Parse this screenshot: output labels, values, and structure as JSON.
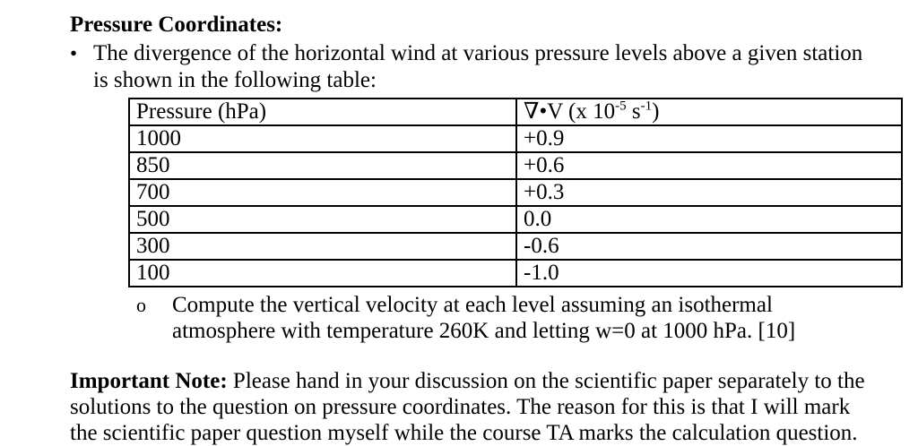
{
  "page": {
    "heading": "Pressure Coordinates:",
    "bullet_item": {
      "marker": "•",
      "text": "The divergence of the horizontal wind at various pressure levels above a given station\nis shown in the following table:"
    },
    "table": {
      "col1_header": "Pressure (hPa)",
      "col2_header": {
        "prefix": "∇•V (x 10",
        "sup1": "-5",
        "mid": " s",
        "sup2": "-1",
        "suffix": ")"
      },
      "rows": [
        {
          "pressure": "1000",
          "divergence": "+0.9"
        },
        {
          "pressure": "850",
          "divergence": "+0.6"
        },
        {
          "pressure": "700",
          "divergence": "+0.3"
        },
        {
          "pressure": "500",
          "divergence": "0.0"
        },
        {
          "pressure": "300",
          "divergence": "-0.6"
        },
        {
          "pressure": "100",
          "divergence": "-1.0"
        }
      ]
    },
    "sub_bullet_item": {
      "marker": "o",
      "text": "Compute the vertical velocity at each level assuming an isothermal\natmosphere with temperature 260K and letting w=0 at 1000 hPa. [10]"
    },
    "note": {
      "label": "Important Note:",
      "text": " Please hand in your discussion on the scientific paper separately to the\nsolutions to the question on pressure coordinates. The reason for this is that I will mark\nthe scientific paper question myself while the course TA marks the calculation question."
    }
  }
}
